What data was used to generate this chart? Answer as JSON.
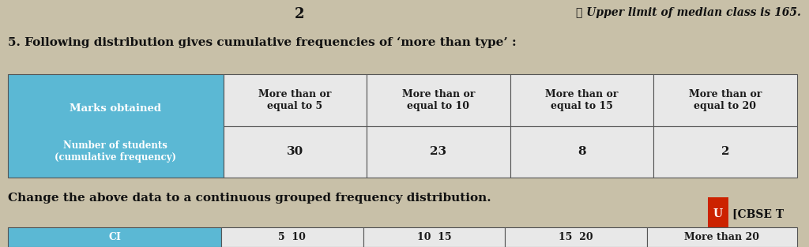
{
  "top_left_text": "2",
  "top_right_text": "∴ Upper limit of median class is 165.",
  "question_text": "5. Following distribution gives cumulative frequencies of ‘more than type’ :",
  "bottom_text": "Change the above data to a continuous grouped frequency distribution.",
  "bottom_tag": "U [CBSE T",
  "bottom_partial_row": [
    "CI",
    "5  10",
    "10  15",
    "15  20",
    "More than 20"
  ],
  "col_headers": [
    "Marks obtained",
    "More than or\nequal to 5",
    "More than or\nequal to 10",
    "More than or\nequal to 15",
    "More than or\nequal to 20"
  ],
  "row_label": "Number of students\n(cumulative frequency)",
  "row_values": [
    "30",
    "23",
    "8",
    "2"
  ],
  "header_bg": "#5bb8d4",
  "row_label_bg": "#5bb8d4",
  "data_bg": "#e8e8e8",
  "page_bg": "#c8c0a8",
  "table_border": "#888888",
  "header_text_color": "#ffffff",
  "data_text_color": "#1a1a1a",
  "question_text_color": "#111111",
  "bottom_tag_color": "#cc2200"
}
